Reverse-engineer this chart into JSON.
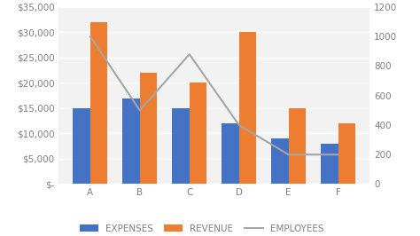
{
  "categories": [
    "A",
    "B",
    "C",
    "D",
    "E",
    "F"
  ],
  "expenses": [
    15000,
    17000,
    15000,
    12000,
    9000,
    8000
  ],
  "revenue": [
    32000,
    22000,
    20000,
    30000,
    15000,
    12000
  ],
  "employees": [
    1000,
    500,
    880,
    400,
    200,
    200
  ],
  "bar_color_expenses": "#4472C4",
  "bar_color_revenue": "#ED7D31",
  "line_color_employees": "#A5A5A5",
  "background_color": "#FFFFFF",
  "plot_bg_color": "#F2F2F2",
  "grid_color": "#FFFFFF",
  "ylim_left": [
    0,
    35000
  ],
  "ylim_right": [
    0,
    1200
  ],
  "yticks_left": [
    0,
    5000,
    10000,
    15000,
    20000,
    25000,
    30000,
    35000
  ],
  "yticks_right": [
    0,
    200,
    400,
    600,
    800,
    1000,
    1200
  ],
  "legend_labels": [
    "EXPENSES",
    "REVENUE",
    "EMPLOYEES"
  ],
  "bar_width": 0.35,
  "tick_label_color": "#808080",
  "tick_label_size": 7.5
}
